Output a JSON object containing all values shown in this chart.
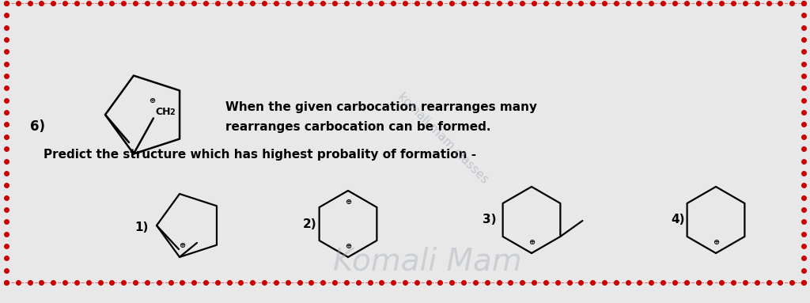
{
  "background_color": "#e8e8e8",
  "border_dot_color": "#cc0000",
  "title_number": "6)",
  "main_text_line1": "When the given carbocation rearranges many",
  "main_text_line2": "rearranges carbocation can be formed.",
  "predict_text": "Predict the structure which has highest probality of formation -",
  "watermark1": "komali mam classes",
  "watermark2": "Komali Mam",
  "labels": [
    "1)",
    "2)",
    "3)",
    "4)"
  ],
  "font_size_main": 11,
  "font_size_predict": 11,
  "font_size_label": 11
}
